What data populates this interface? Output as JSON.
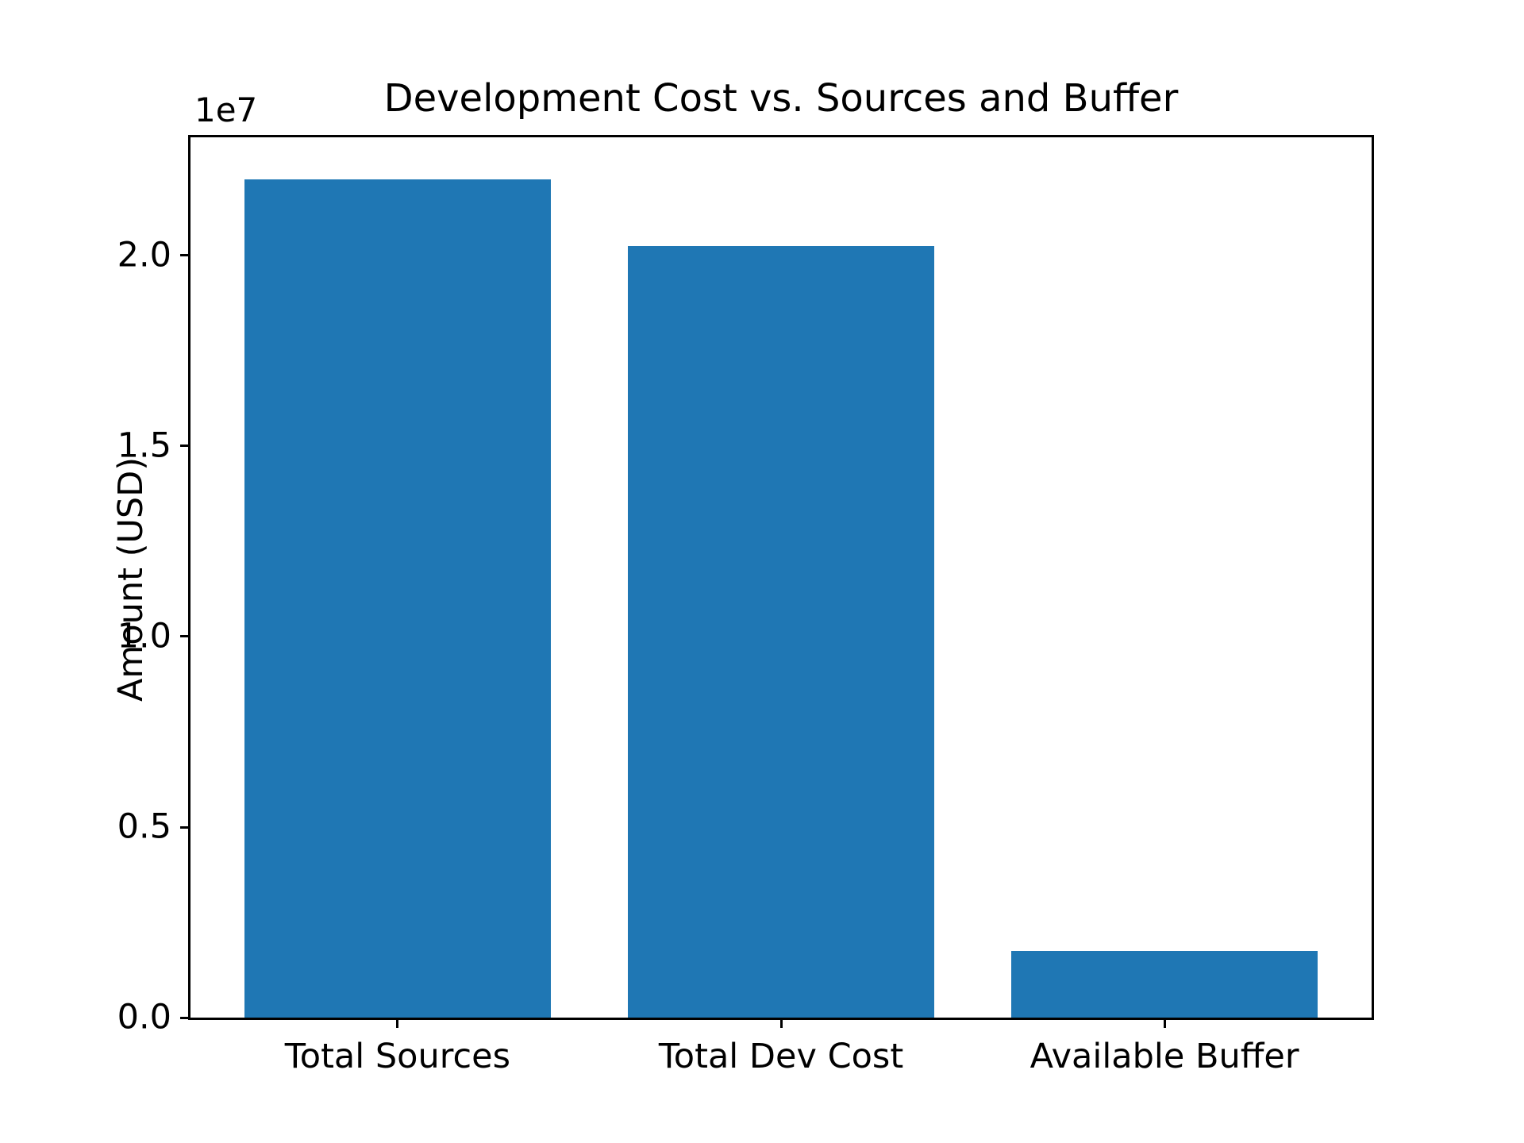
{
  "chart_data": {
    "type": "bar",
    "title": "Development Cost vs. Sources and Buffer",
    "xlabel": "",
    "ylabel": "Amount (USD)",
    "y_offset_label": "1e7",
    "categories": [
      "Total Sources",
      "Total Dev Cost",
      "Available Buffer"
    ],
    "values": [
      22000000,
      20250000,
      1750000
    ],
    "bar_color": "#1f77b4",
    "ylim": [
      0,
      23100000
    ],
    "yticks": [
      0,
      5000000,
      10000000,
      15000000,
      20000000
    ],
    "ytick_labels": [
      "0.0",
      "0.5",
      "1.0",
      "1.5",
      "2.0"
    ],
    "grid": false,
    "legend": null,
    "background_color": "#ffffff",
    "axis_color": "#000000"
  }
}
